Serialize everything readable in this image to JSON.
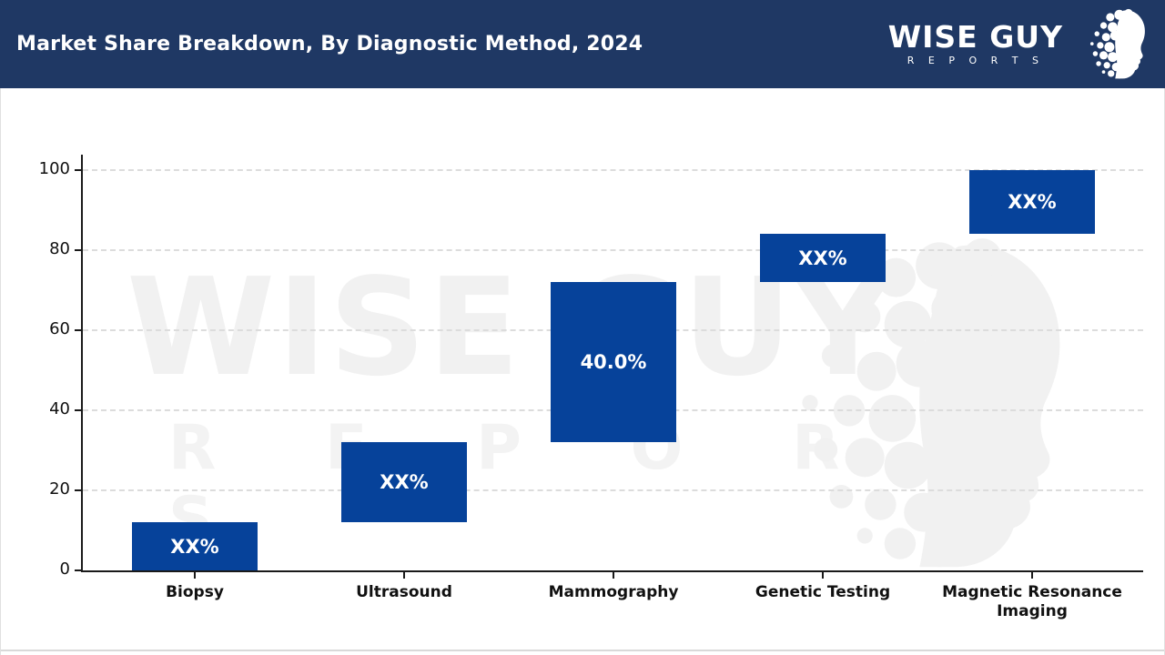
{
  "header": {
    "title": "Market Share Breakdown, By Diagnostic Method, 2024",
    "logo": {
      "line1": "WISE GUY",
      "line2": "R E P O R T S"
    }
  },
  "watermark": {
    "line1": "WISE GUY",
    "line2": "R E P O R T S"
  },
  "colors": {
    "header_bg": "#1f3864",
    "bar": "#06429a",
    "bar_label": "#ffffff",
    "grid": "#dcdcdc",
    "axis": "#1a1a1a",
    "watermark": "#f1f1f1"
  },
  "chart_data": {
    "type": "bar",
    "subtype": "waterfall",
    "title": "Market Share Breakdown, By Diagnostic Method, 2024",
    "categories": [
      "Biopsy",
      "Ultrasound",
      "Mammography",
      "Genetic Testing",
      "Magnetic Resonance Imaging"
    ],
    "bars": [
      {
        "category": "Biopsy",
        "start": 0,
        "end": 12,
        "label": "XX%"
      },
      {
        "category": "Ultrasound",
        "start": 12,
        "end": 32,
        "label": "XX%"
      },
      {
        "category": "Mammography",
        "start": 32,
        "end": 72,
        "label": "40.0%"
      },
      {
        "category": "Genetic Testing",
        "start": 72,
        "end": 84,
        "label": "XX%"
      },
      {
        "category": "Magnetic Resonance Imaging",
        "start": 84,
        "end": 100,
        "label": "XX%"
      }
    ],
    "xlabel": "",
    "ylabel": "",
    "yticks": [
      0,
      20,
      40,
      60,
      80,
      100
    ],
    "ylim": [
      0,
      100
    ],
    "grid": "horizontal-dashed",
    "legend": "none"
  }
}
